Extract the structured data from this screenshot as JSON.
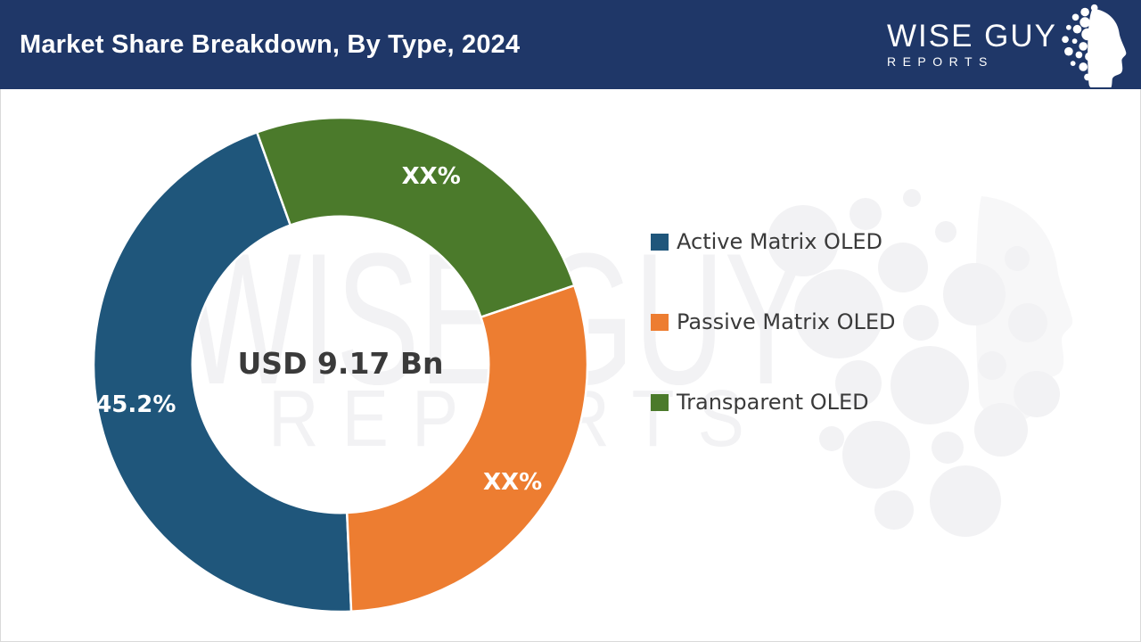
{
  "header": {
    "title": "Market Share Breakdown, By Type, 2024",
    "brand": {
      "name": "WISE GUY",
      "sub": "REPORTS"
    }
  },
  "watermark": {
    "line1": "WISE GUY",
    "line2": "REPORTS"
  },
  "chart_data": {
    "type": "donut",
    "title": "Market Share Breakdown, By Type, 2024",
    "center_label": "USD 9.17 Bn",
    "segments": [
      {
        "label": "Active Matrix OLED",
        "value_pct": 45.2,
        "display_value": "45.2%",
        "color": "#1F567B"
      },
      {
        "label": "Passive Matrix OLED",
        "value_pct": 29.5,
        "display_value": "XX%",
        "color": "#ED7D31"
      },
      {
        "label": "Transparent OLED",
        "value_pct": 25.3,
        "display_value": "XX%",
        "color": "#4B7A2B"
      }
    ],
    "start_angle_deg": 177.5,
    "draw_order": [
      0,
      2,
      1
    ],
    "inner_radius_ratio": 0.6,
    "label_radius_ratio": 0.845,
    "legend_position": "right"
  },
  "colors": {
    "header_bg": "#1F3768",
    "header_text": "#FFFFFF",
    "watermark": "#F2F2F4",
    "text_dark": "#3A3A3A",
    "page_border": "#D9D9D9"
  }
}
